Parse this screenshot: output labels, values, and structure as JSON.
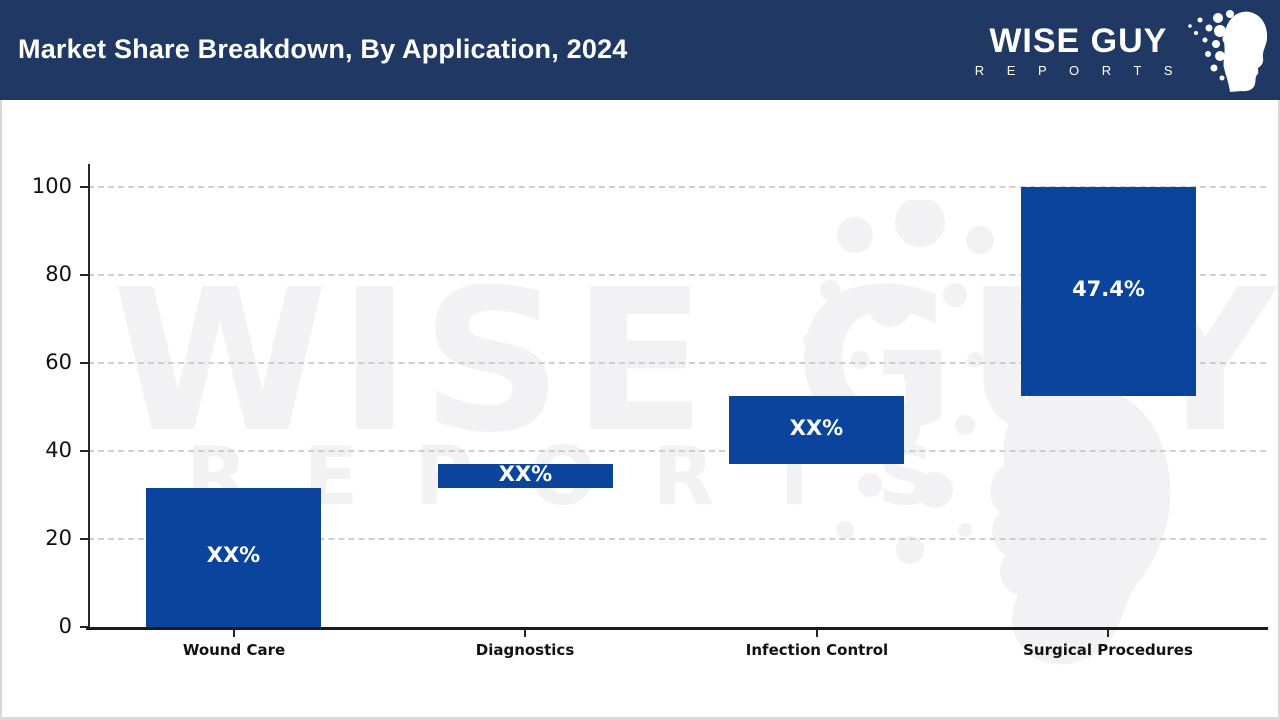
{
  "header": {
    "title": "Market Share Breakdown, By Application, 2024",
    "logo": {
      "line1": "WISE GUY",
      "line2": "R E P O R T S"
    }
  },
  "watermark": {
    "line1": "WISE GUY",
    "line2": "REPORTS"
  },
  "colors": {
    "header_bg": "#1f3864",
    "bar": "#0a449c",
    "grid": "#cfcfcf",
    "axis": "#1a1a1a",
    "watermark": "#f2f2f4",
    "bar_label": "#ffffff"
  },
  "chart_data": {
    "type": "bar",
    "subtype": "waterfall",
    "title": "Market Share Breakdown, By Application, 2024",
    "categories": [
      "Wound Care",
      "Diagnostics",
      "Infection Control",
      "Surgical Procedures"
    ],
    "segments": [
      {
        "category": "Wound Care",
        "start": 0,
        "end": 31.6,
        "value_label": "XX%"
      },
      {
        "category": "Diagnostics",
        "start": 31.6,
        "end": 37.1,
        "value_label": "XX%"
      },
      {
        "category": "Infection Control",
        "start": 37.1,
        "end": 52.6,
        "value_label": "XX%"
      },
      {
        "category": "Surgical Procedures",
        "start": 52.6,
        "end": 100,
        "value_label": "47.4%"
      }
    ],
    "xlabel": "",
    "ylabel": "",
    "ylim": [
      0,
      100
    ],
    "yticks": [
      0,
      20,
      40,
      60,
      80,
      100
    ],
    "grid": true,
    "legend": false,
    "bar_color": "#0a449c"
  }
}
